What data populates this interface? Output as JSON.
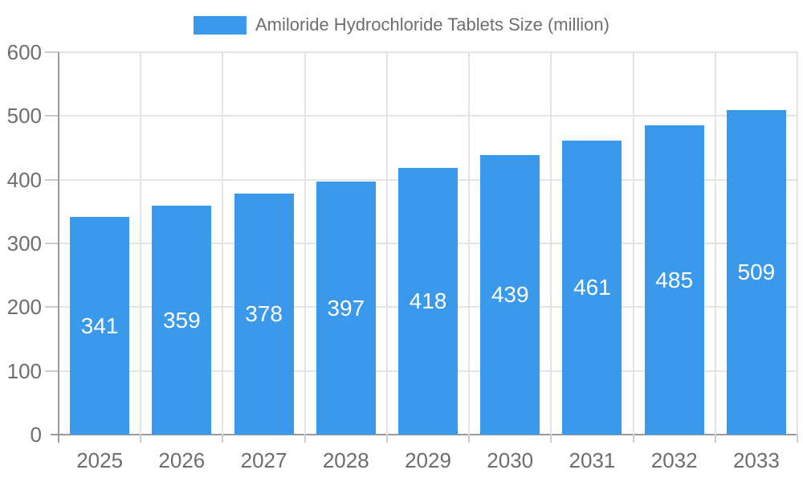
{
  "legend": {
    "label": "Amiloride Hydrochloride Tablets Size (million)"
  },
  "chart_data": {
    "type": "bar",
    "title": "Amiloride Hydrochloride Tablets Size (million)",
    "categories": [
      "2025",
      "2026",
      "2027",
      "2028",
      "2029",
      "2030",
      "2031",
      "2032",
      "2033"
    ],
    "values": [
      341,
      359,
      378,
      397,
      418,
      439,
      461,
      485,
      509
    ],
    "series": [
      {
        "name": "Amiloride Hydrochloride Tablets Size (million)",
        "values": [
          341,
          359,
          378,
          397,
          418,
          439,
          461,
          485,
          509
        ]
      }
    ],
    "xlabel": "",
    "ylabel": "",
    "ylim": [
      0,
      600
    ],
    "ytick_step": 100,
    "yticks": [
      0,
      100,
      200,
      300,
      400,
      500,
      600
    ],
    "grid": true,
    "legend_position": "top",
    "value_labels": "inside-center",
    "colors": {
      "bar": "#3B99EC",
      "value_label": "#FFFFFF",
      "axis_text": "#6E6E6E",
      "grid_line": "#E4E4E4",
      "axis_line": "#9B9B9B",
      "tick_line": "#CCCCCC"
    }
  }
}
